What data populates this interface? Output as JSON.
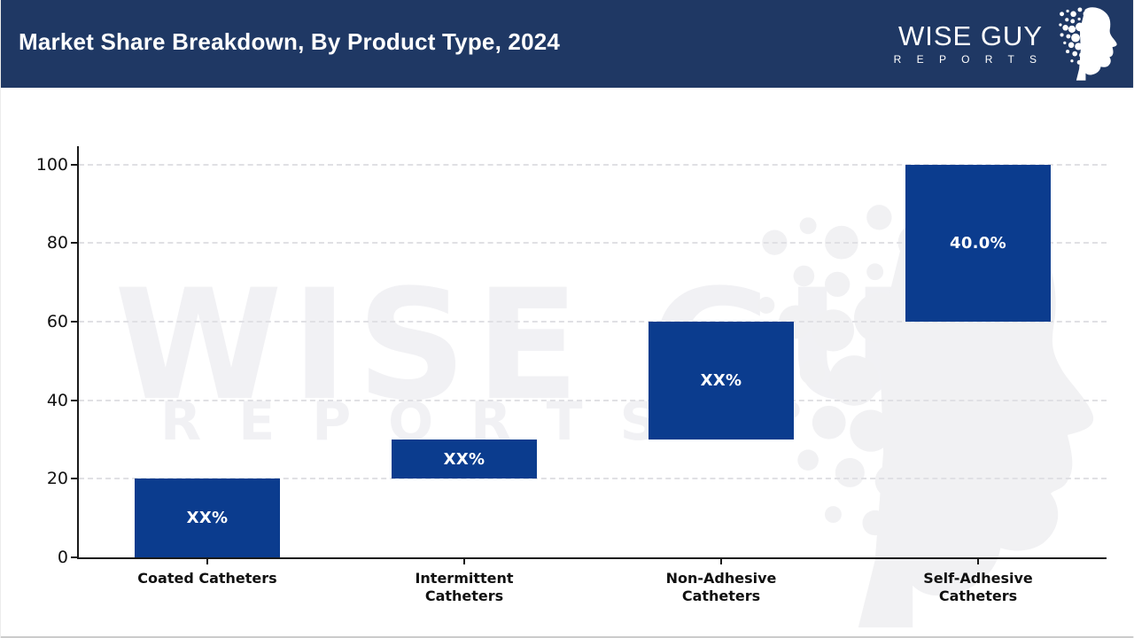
{
  "header": {
    "title": "Market Share Breakdown, By Product Type, 2024",
    "logo": {
      "name": "WISE GUY",
      "subtitle": "R E P O R T S"
    }
  },
  "watermark": {
    "line1": "WISE GUY",
    "line2": "REPORTS"
  },
  "colors": {
    "header_bg": "#1f3864",
    "bar_fill": "#0b3c8e",
    "bar_label_text": "#ffffff",
    "gridline": "#e0e0e4",
    "axis": "#1a1a1a",
    "watermark": "#f1f1f4",
    "bottom_line": "#cbcbcb"
  },
  "chart_data": {
    "type": "bar",
    "subtype": "waterfall",
    "title": "Market Share Breakdown, By Product Type, 2024",
    "categories": [
      "Coated Catheters",
      "Intermittent\nCatheters",
      "Non-Adhesive\nCatheters",
      "Self-Adhesive\nCatheters"
    ],
    "segments": [
      {
        "category": "Coated Catheters",
        "start": 0,
        "end": 20,
        "label": "XX%"
      },
      {
        "category": "Intermittent Catheters",
        "start": 20,
        "end": 30,
        "label": "XX%"
      },
      {
        "category": "Non-Adhesive Catheters",
        "start": 30,
        "end": 60,
        "label": "XX%"
      },
      {
        "category": "Self-Adhesive Catheters",
        "start": 60,
        "end": 100,
        "label": "40.0%"
      }
    ],
    "ylim": [
      0,
      100
    ],
    "yticks": [
      0,
      20,
      40,
      60,
      80,
      100
    ],
    "xlabel": "",
    "ylabel": "",
    "grid": "horizontal-dashed",
    "legend": "none"
  }
}
